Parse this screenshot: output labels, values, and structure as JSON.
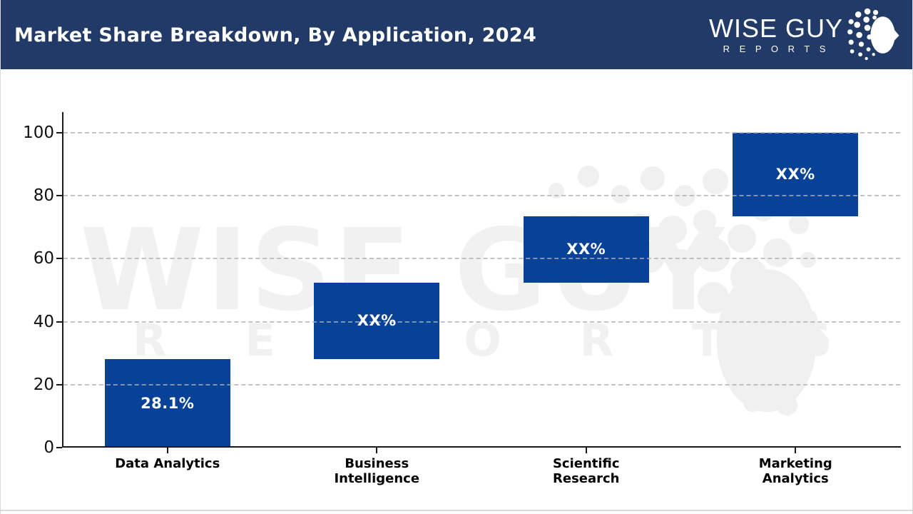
{
  "header": {
    "title": "Market Share Breakdown, By Application, 2024",
    "bg_color": "#223a68",
    "logo": {
      "brand": "WISE GUY",
      "sub": "R E P O R T S"
    }
  },
  "watermark": {
    "line1": "WISE GUY",
    "line2": "R E P O R T S"
  },
  "chart_data": {
    "type": "bar",
    "subtype": "floating-waterfall",
    "title": "Market Share Breakdown, By Application, 2024",
    "categories": [
      "Data Analytics",
      "Business\nIntelligence",
      "Scientific\nResearch",
      "Marketing\nAnalytics"
    ],
    "segments": [
      {
        "category": "Data Analytics",
        "start": 0,
        "end": 28.1,
        "label": "28.1%"
      },
      {
        "category": "Business Intelligence",
        "start": 28.1,
        "end": 52.4,
        "label": "XX%"
      },
      {
        "category": "Scientific Research",
        "start": 52.4,
        "end": 73.5,
        "label": "XX%"
      },
      {
        "category": "Marketing Analytics",
        "start": 73.5,
        "end": 100,
        "label": "XX%"
      }
    ],
    "ylim": [
      0,
      100
    ],
    "yticks": [
      0,
      20,
      40,
      60,
      80,
      100
    ],
    "grid": "horizontal-dashed",
    "legend": "none",
    "bar_color": "#084298",
    "bar_label_color": "#ffffff",
    "gridline_color": "#c9c9c9",
    "watermark_color": "#f1f1f1"
  }
}
